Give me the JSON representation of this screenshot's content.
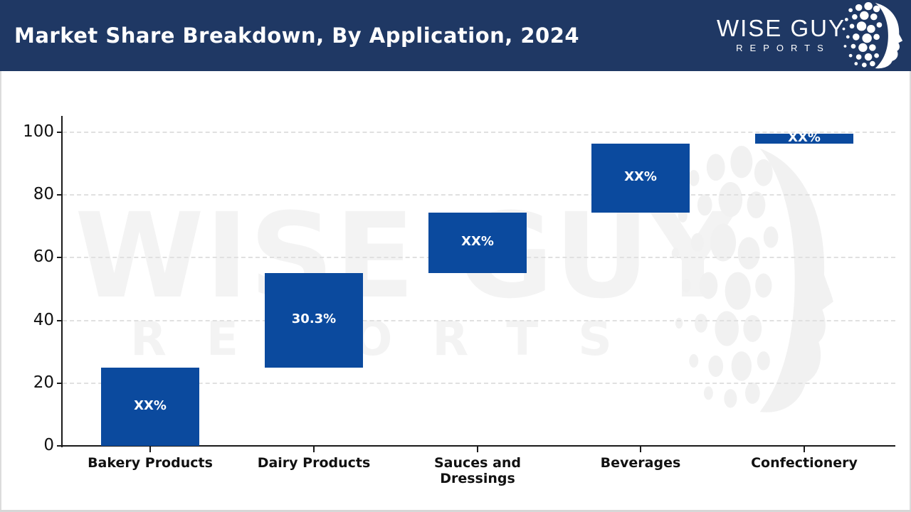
{
  "header": {
    "title": "Market Share Breakdown, By Application, 2024",
    "logo": {
      "line1": "WISE GUY",
      "line2": "REPORTS"
    }
  },
  "watermark": {
    "line1": "WISE GUY",
    "line2": "REPORTS"
  },
  "chart_data": {
    "type": "bar",
    "subtype": "waterfall",
    "title": "Market Share Breakdown, By Application, 2024",
    "categories": [
      "Bakery Products",
      "Dairy Products",
      "Sauces and\nDressings",
      "Beverages",
      "Confectionery"
    ],
    "segments": [
      {
        "category": "Bakery Products",
        "start": 0,
        "end": 24.9,
        "label": "XX%"
      },
      {
        "category": "Dairy Products",
        "start": 24.9,
        "end": 55.2,
        "label": "30.3%"
      },
      {
        "category": "Sauces and\nDressings",
        "start": 55.2,
        "end": 74.4,
        "label": "XX%"
      },
      {
        "category": "Beverages",
        "start": 74.4,
        "end": 96.4,
        "label": "XX%"
      },
      {
        "category": "Confectionery",
        "start": 96.4,
        "end": 99.6,
        "label": "XX%"
      }
    ],
    "yticks": [
      0,
      20,
      40,
      60,
      80,
      100
    ],
    "ylim": [
      0,
      105
    ],
    "xlabel": "",
    "ylabel": "",
    "grid": "horizontal-dashed",
    "legend": "none",
    "bar_color": "#0b4a9e",
    "bar_label_color": "#ffffff",
    "header_color": "#1f3864",
    "axis_color": "#1a1a1a",
    "gridline_color": "#e0e0e0"
  }
}
